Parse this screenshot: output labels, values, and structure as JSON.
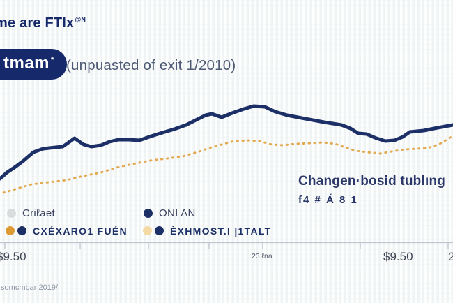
{
  "header": {
    "title": "me are FTIx",
    "title_sup": "@N",
    "badge": {
      "label": "tmam",
      "sup": "*"
    },
    "subtitle": "(unpuasted of exit 1/2010)"
  },
  "annotation": {
    "line1": "Changen·bosid tublıng",
    "line2": "f4 # Á 8 1"
  },
  "legend": {
    "items": [
      {
        "label": "Criℓaet",
        "dots": [
          "#d9dcdd"
        ]
      },
      {
        "label": "ONI AN",
        "dots": [
          "#1c2f66"
        ]
      },
      {
        "label": "CXÉXARO1 FUÉN",
        "dots": [
          "#de9b33",
          "#1c2f66"
        ]
      },
      {
        "label": "ÈXHMOST.I |1TALT",
        "dots": [
          "#f4daa4",
          "#1c2f66"
        ]
      }
    ]
  },
  "x_axis": {
    "axis_y": 347.5,
    "tick_length": 9,
    "tick_positions": [
      7,
      115,
      213,
      300,
      377,
      517,
      643
    ],
    "labels": [
      {
        "text": "$9.50"
      },
      {
        "text": "23.ℓna"
      },
      {
        "text": "$9.50"
      },
      {
        "text": "2"
      }
    ]
  },
  "footnote": ":somcmbar 2019/",
  "colors": {
    "navy": "#1c2f66",
    "orange": "#de9b33",
    "tan": "#f4daa4",
    "gray_dot": "#d9dcdd",
    "axis": "#bfc6cf",
    "subtitle": "#4f5a75"
  },
  "chart_data": {
    "type": "line",
    "title": "me are FTIx (unpuasted of exit 1/2010)",
    "annotation": "Changen·bosid tublıng / f4 # Á 8 1",
    "legend_entries": [
      "Criℓaet",
      "ONI AN",
      "CXÉXARO1 FUÉN",
      "ÈXHMOST.I |1TALT"
    ],
    "x_tick_labels": [
      "$9.50",
      "23.ℓna",
      "$9.50",
      "2"
    ],
    "axis_note": "tick labels garbled in source; values read as pixel coordinates on 650x434 canvas, y increases downward",
    "grid": "faint vertical pinstripes",
    "legend_position": "bottom-left, two columns",
    "series": [
      {
        "name": "ONI AN",
        "color": "#1c2f66",
        "style": "solid",
        "stroke_width": 5,
        "points": [
          [
            0,
            256
          ],
          [
            10,
            247
          ],
          [
            22,
            239
          ],
          [
            34,
            230
          ],
          [
            48,
            218
          ],
          [
            62,
            213
          ],
          [
            80,
            211
          ],
          [
            90,
            210
          ],
          [
            107,
            198
          ],
          [
            120,
            207
          ],
          [
            131,
            210
          ],
          [
            145,
            208
          ],
          [
            157,
            203
          ],
          [
            170,
            200
          ],
          [
            185,
            200
          ],
          [
            200,
            201
          ],
          [
            217,
            195
          ],
          [
            233,
            190
          ],
          [
            250,
            185
          ],
          [
            267,
            179
          ],
          [
            281,
            172
          ],
          [
            295,
            165
          ],
          [
            304,
            163
          ],
          [
            318,
            168
          ],
          [
            333,
            162
          ],
          [
            350,
            156
          ],
          [
            364,
            152
          ],
          [
            380,
            153
          ],
          [
            395,
            160
          ],
          [
            412,
            165
          ],
          [
            438,
            170
          ],
          [
            465,
            175
          ],
          [
            490,
            179
          ],
          [
            503,
            184
          ],
          [
            514,
            191
          ],
          [
            526,
            192
          ],
          [
            540,
            198
          ],
          [
            553,
            202
          ],
          [
            566,
            201
          ],
          [
            578,
            196
          ],
          [
            588,
            189
          ],
          [
            608,
            187
          ],
          [
            628,
            183
          ],
          [
            650,
            179
          ]
        ]
      },
      {
        "name": "CXÉXARO1 FUÉN",
        "color": "#de9b33",
        "style": "dotted",
        "stroke_width": 3,
        "points": [
          [
            5,
            276
          ],
          [
            25,
            270
          ],
          [
            45,
            264
          ],
          [
            70,
            261
          ],
          [
            95,
            258
          ],
          [
            120,
            252
          ],
          [
            145,
            247
          ],
          [
            167,
            240
          ],
          [
            190,
            235
          ],
          [
            215,
            230
          ],
          [
            240,
            227
          ],
          [
            262,
            224
          ],
          [
            283,
            218
          ],
          [
            300,
            212
          ],
          [
            318,
            207
          ],
          [
            336,
            202
          ],
          [
            356,
            201
          ],
          [
            372,
            202
          ],
          [
            390,
            207
          ],
          [
            406,
            208
          ],
          [
            424,
            206
          ],
          [
            444,
            205
          ],
          [
            464,
            204
          ],
          [
            481,
            206
          ],
          [
            495,
            211
          ],
          [
            510,
            216
          ],
          [
            527,
            218
          ],
          [
            545,
            220
          ],
          [
            562,
            217
          ],
          [
            580,
            214
          ],
          [
            600,
            213
          ],
          [
            617,
            211
          ],
          [
            631,
            206
          ],
          [
            643,
            199
          ],
          [
            650,
            194
          ]
        ]
      }
    ]
  }
}
